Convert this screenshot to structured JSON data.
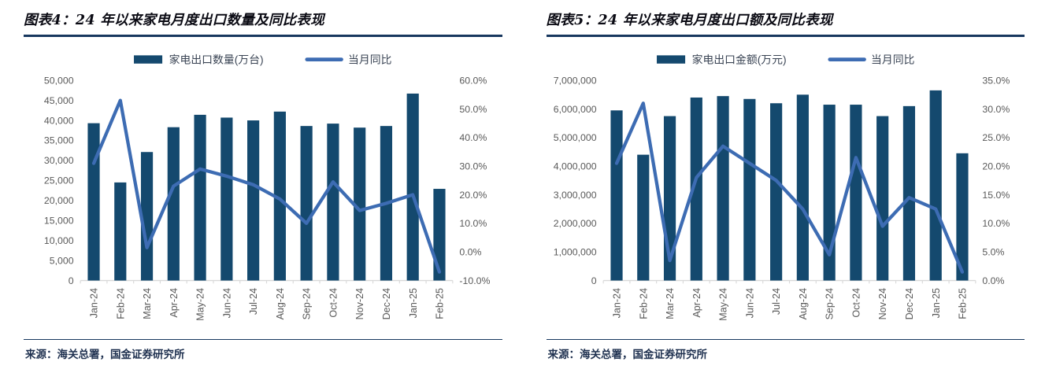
{
  "figures": [
    {
      "heading": "图表4：24 年以来家电月度出口数量及同比表现",
      "source": "来源：海关总署，国金证券研究所"
    },
    {
      "heading": "图表5：24 年以来家电月度出口额及同比表现",
      "source": "来源：海关总署，国金证券研究所"
    }
  ],
  "chart_data": [
    {
      "type": "bar",
      "subtype": "bar+line combo, dual axis",
      "categories": [
        "Jan-24",
        "Feb-24",
        "Mar-24",
        "Apr-24",
        "May-24",
        "Jun-24",
        "Jul-24",
        "Aug-24",
        "Sep-24",
        "Oct-24",
        "Nov-24",
        "Dec-24",
        "Jan-25",
        "Feb-25"
      ],
      "series": [
        {
          "name": "家电出口数量(万台)",
          "type": "bar",
          "axis": "left",
          "values": [
            39300,
            24500,
            32100,
            38300,
            41400,
            40700,
            40000,
            42200,
            38600,
            39200,
            38200,
            38600,
            46700,
            22900
          ]
        },
        {
          "name": "当月同比",
          "type": "line",
          "axis": "right",
          "values": [
            31,
            53,
            1.5,
            23,
            29,
            26.5,
            23.5,
            18.5,
            10,
            24.5,
            14.5,
            17,
            20,
            -7
          ]
        }
      ],
      "left_axis": {
        "min": 0,
        "max": 50000,
        "step": 5000,
        "format": "thousands"
      },
      "right_axis": {
        "min": -10,
        "max": 60,
        "step": 10,
        "format": "percent1"
      },
      "legend_position": "top",
      "grid": false
    },
    {
      "type": "bar",
      "subtype": "bar+line combo, dual axis",
      "categories": [
        "Jan-24",
        "Feb-24",
        "Mar-24",
        "Apr-24",
        "May-24",
        "Jun-24",
        "Jul-24",
        "Aug-24",
        "Sep-24",
        "Oct-24",
        "Nov-24",
        "Dec-24",
        "Jan-25",
        "Feb-25"
      ],
      "series": [
        {
          "name": "家电出口金额(万元)",
          "type": "bar",
          "axis": "left",
          "values": [
            5950000,
            4400000,
            5750000,
            6400000,
            6450000,
            6350000,
            6200000,
            6500000,
            6150000,
            6150000,
            5750000,
            6100000,
            6650000,
            4450000
          ]
        },
        {
          "name": "当月同比",
          "type": "line",
          "axis": "right",
          "values": [
            20.5,
            31,
            3.5,
            18,
            23.5,
            20.5,
            17.5,
            12.5,
            4.5,
            21.5,
            9.5,
            14.5,
            12.5,
            1.5
          ]
        }
      ],
      "left_axis": {
        "min": 0,
        "max": 7000000,
        "step": 1000000,
        "format": "thousands"
      },
      "right_axis": {
        "min": 0,
        "max": 35,
        "step": 5,
        "format": "percent1"
      },
      "legend_position": "top",
      "grid": false
    }
  ],
  "colors": {
    "bar": "#14496E",
    "line": "#3D6CB3",
    "axis_text": "#595959",
    "axis_line": "#D9D9D9",
    "legend_text": "#3A4454",
    "title_rule": "#17375E",
    "footer_text": "#1F3150"
  }
}
